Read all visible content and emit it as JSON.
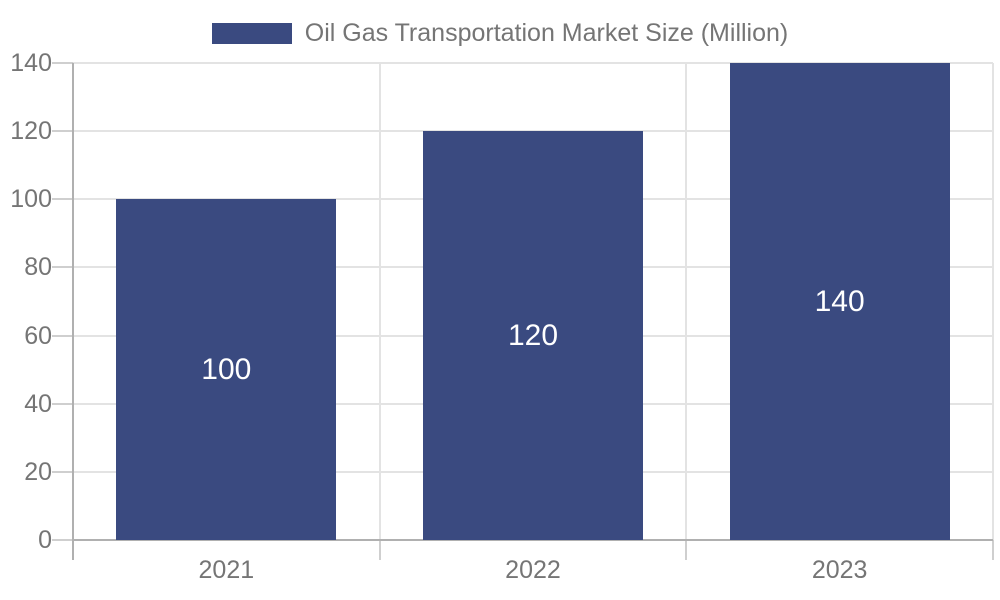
{
  "chart_data": {
    "type": "bar",
    "title": "Oil Gas Transportation Market Size (Million)",
    "categories": [
      "2021",
      "2022",
      "2023"
    ],
    "values": [
      100,
      120,
      140
    ],
    "xlabel": "",
    "ylabel": "",
    "ylim": [
      0,
      140
    ],
    "yticks": [
      0,
      20,
      40,
      60,
      80,
      100,
      120,
      140
    ],
    "grid": true,
    "show_data_labels": true,
    "legend_position": "top"
  },
  "colors": {
    "bar": "#3A4A80",
    "data_label": "#FFFFFF",
    "legend_text": "#757575",
    "tick_label": "#757575",
    "axis_line": "#B0B0B0",
    "tick_line": "#CFCFCF",
    "gridline": "#E3E3E3",
    "background": "#FFFFFF"
  }
}
